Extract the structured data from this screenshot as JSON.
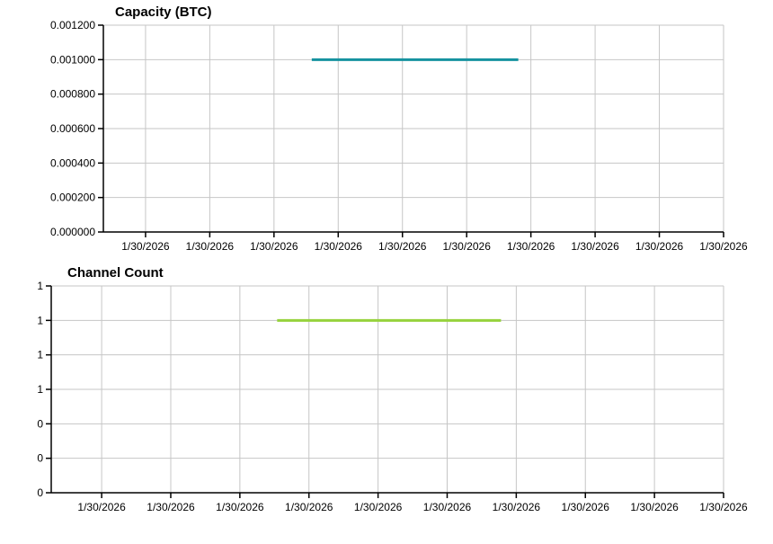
{
  "page": {
    "background_color": "#ffffff"
  },
  "style": {
    "grid_color": "#c6c6c6",
    "axis_color": "#000000",
    "text_color": "#000000"
  },
  "chart_data": [
    {
      "type": "line",
      "title": "Capacity (BTC)",
      "xlabel": "",
      "ylabel": "",
      "ylim": [
        0,
        0.0012
      ],
      "grid": true,
      "legend": "none",
      "y_tick_values": [
        0.0012,
        0.001,
        0.0008,
        0.0006,
        0.0004,
        0.0002,
        0
      ],
      "y_tick_labels": [
        "0.001200",
        "0.001000",
        "0.000800",
        "0.000600",
        "0.000400",
        "0.000200",
        "0.000000"
      ],
      "x_tick_labels": [
        "1/30/2026",
        "1/30/2026",
        "1/30/2026",
        "1/30/2026",
        "1/30/2026",
        "1/30/2026",
        "1/30/2026",
        "1/30/2026",
        "1/30/2026",
        "1/30/2026"
      ],
      "series": [
        {
          "name": "capacity-btc",
          "color": "#15929f",
          "value": 0.001,
          "x_start_frac": 0.336,
          "x_end_frac": 0.669
        }
      ]
    },
    {
      "type": "line",
      "title": "Channel Count",
      "xlabel": "",
      "ylabel": "",
      "ylim": [
        0,
        1.2
      ],
      "grid": true,
      "legend": "none",
      "y_tick_values": [
        1.2,
        1.0,
        0.8,
        0.6,
        0.4,
        0.2,
        0
      ],
      "y_tick_labels": [
        "1",
        "1",
        "1",
        "1",
        "0",
        "0",
        "0"
      ],
      "x_tick_labels": [
        "1/30/2026",
        "1/30/2026",
        "1/30/2026",
        "1/30/2026",
        "1/30/2026",
        "1/30/2026",
        "1/30/2026",
        "1/30/2026",
        "1/30/2026",
        "1/30/2026"
      ],
      "series": [
        {
          "name": "channel-count",
          "color": "#96d23c",
          "value": 1,
          "x_start_frac": 0.336,
          "x_end_frac": 0.669
        }
      ]
    }
  ]
}
